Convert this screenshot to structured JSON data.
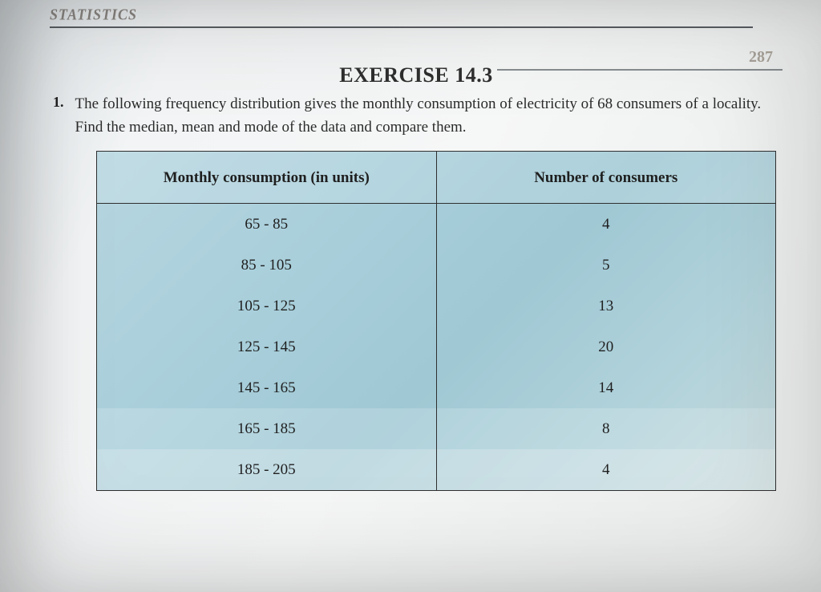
{
  "running_head": "STATISTICS",
  "page_number": "287",
  "exercise_title": "EXERCISE 14.3",
  "problem": {
    "number": "1.",
    "text": "The following frequency distribution gives the monthly consumption of electricity of 68 consumers of a locality. Find the median, mean and mode of the data and compare them."
  },
  "table": {
    "columns": [
      "Monthly consumption (in units)",
      "Number of consumers"
    ],
    "rows": [
      [
        "65 - 85",
        "4"
      ],
      [
        "85 - 105",
        "5"
      ],
      [
        "105 - 125",
        "13"
      ],
      [
        "125 - 145",
        "20"
      ],
      [
        "145 - 165",
        "14"
      ],
      [
        "165 - 185",
        "8"
      ],
      [
        "185 - 205",
        "4"
      ]
    ],
    "header_fontsize": 19,
    "cell_fontsize": 19,
    "border_color": "#2f2f2f",
    "bg_gradient": [
      "#b7d6e0",
      "#9fc8d4",
      "#c6dadc"
    ]
  },
  "colors": {
    "page_bg_start": "#d8dde0",
    "page_bg_end": "#eceeee",
    "text": "#2a2a2a",
    "muted": "#8a8682",
    "pagenum": "#a9a39a"
  }
}
